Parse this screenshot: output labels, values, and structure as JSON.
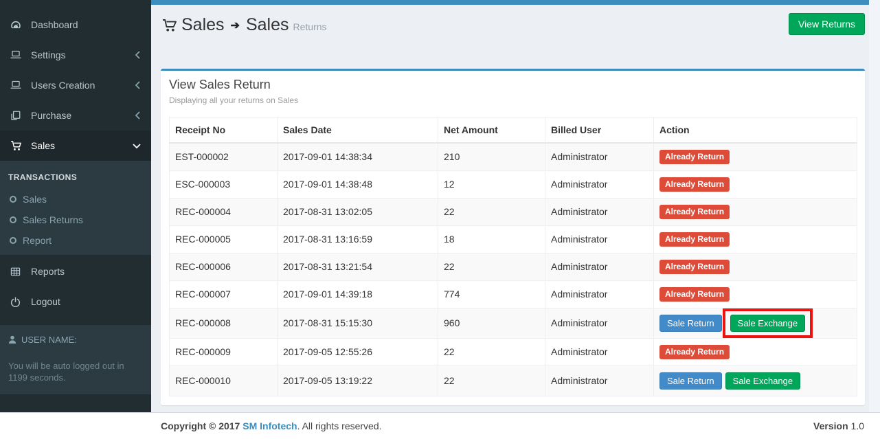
{
  "colors": {
    "accent_blue": "#3c8dbc",
    "sidebar_bg": "#222d32",
    "sidebar_active_bg": "#1e282c",
    "submenu_bg": "#2c3b41",
    "green": "#00a65a",
    "red_badge": "#dd4b39",
    "blue_button": "#428bca",
    "highlight_red": "#ec130e",
    "content_bg": "#ecf0f5"
  },
  "sidebar": {
    "items": [
      {
        "label": "Dashboard",
        "icon": "dashboard-icon",
        "chevron": "none"
      },
      {
        "label": "Settings",
        "icon": "laptop-icon",
        "chevron": "left"
      },
      {
        "label": "Users Creation",
        "icon": "laptop-icon",
        "chevron": "left"
      },
      {
        "label": "Purchase",
        "icon": "copy-icon",
        "chevron": "left"
      },
      {
        "label": "Sales",
        "icon": "cart-icon",
        "chevron": "down",
        "active": true
      }
    ],
    "submenu_header": "TRANSACTIONS",
    "submenu": [
      {
        "label": "Sales"
      },
      {
        "label": "Sales Returns"
      },
      {
        "label": "Report"
      }
    ],
    "lower_items": [
      {
        "label": "Reports",
        "icon": "table-icon"
      },
      {
        "label": "Logout",
        "icon": "power-icon"
      }
    ],
    "user_section": {
      "label": "USER NAME:",
      "note_line1": "You will be auto logged out in",
      "note_line2": "1199 seconds."
    }
  },
  "header": {
    "breadcrumb_primary": "Sales",
    "breadcrumb_secondary": "Sales",
    "breadcrumb_tertiary": "Returns",
    "arrow": "➔",
    "view_returns_label": "View Returns"
  },
  "panel": {
    "title": "View Sales Return",
    "subtitle": "Displaying all your returns on Sales"
  },
  "table": {
    "columns": [
      "Receipt No",
      "Sales Date",
      "Net Amount",
      "Billed User",
      "Action"
    ],
    "rows": [
      {
        "receipt": "EST-000002",
        "date": "2017-09-01 14:38:34",
        "amount": "210",
        "user": "Administrator",
        "actions": [
          {
            "label": "Already Return",
            "type": "badge-danger"
          }
        ]
      },
      {
        "receipt": "ESC-000003",
        "date": "2017-09-01 14:38:48",
        "amount": "12",
        "user": "Administrator",
        "actions": [
          {
            "label": "Already Return",
            "type": "badge-danger"
          }
        ]
      },
      {
        "receipt": "REC-000004",
        "date": "2017-08-31 13:02:05",
        "amount": "22",
        "user": "Administrator",
        "actions": [
          {
            "label": "Already Return",
            "type": "badge-danger"
          }
        ]
      },
      {
        "receipt": "REC-000005",
        "date": "2017-08-31 13:16:59",
        "amount": "18",
        "user": "Administrator",
        "actions": [
          {
            "label": "Already Return",
            "type": "badge-danger"
          }
        ]
      },
      {
        "receipt": "REC-000006",
        "date": "2017-08-31 13:21:54",
        "amount": "22",
        "user": "Administrator",
        "actions": [
          {
            "label": "Already Return",
            "type": "badge-danger"
          }
        ]
      },
      {
        "receipt": "REC-000007",
        "date": "2017-09-01 14:39:18",
        "amount": "774",
        "user": "Administrator",
        "actions": [
          {
            "label": "Already Return",
            "type": "badge-danger"
          }
        ]
      },
      {
        "receipt": "REC-000008",
        "date": "2017-08-31 15:15:30",
        "amount": "960",
        "user": "Administrator",
        "actions": [
          {
            "label": "Sale Return",
            "type": "btn-primary"
          },
          {
            "label": "Sale Exchange",
            "type": "btn-success",
            "highlighted": true
          }
        ]
      },
      {
        "receipt": "REC-000009",
        "date": "2017-09-05 12:55:26",
        "amount": "22",
        "user": "Administrator",
        "actions": [
          {
            "label": "Already Return",
            "type": "badge-danger"
          }
        ]
      },
      {
        "receipt": "REC-000010",
        "date": "2017-09-05 13:19:22",
        "amount": "22",
        "user": "Administrator",
        "actions": [
          {
            "label": "Sale Return",
            "type": "btn-primary"
          },
          {
            "label": "Sale Exchange",
            "type": "btn-success"
          }
        ]
      }
    ]
  },
  "footer": {
    "copyright_prefix": "Copyright © 2017 ",
    "company": "SM Infotech",
    "copyright_suffix": ". All rights reserved.",
    "version_label": "Version",
    "version_value": " 1.0"
  }
}
